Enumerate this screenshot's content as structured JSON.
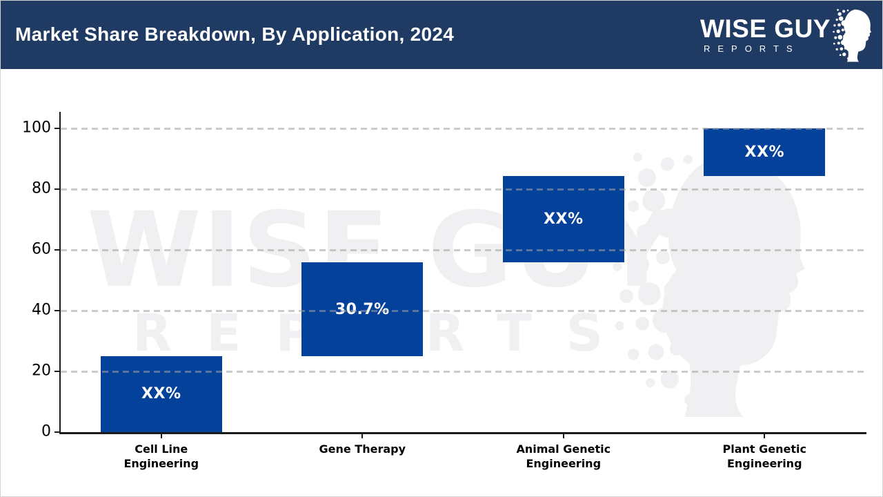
{
  "header": {
    "title": "Market Share Breakdown, By Application, 2024"
  },
  "brand": {
    "name": "WISE GUY",
    "sub": "REPORTS",
    "face_icon": "dotted-head-profile-icon"
  },
  "watermark": {
    "name": "WISE GUY",
    "sub": "REPORTS"
  },
  "chart_data": {
    "type": "bar",
    "subtype": "floating-segment-waterfall",
    "title": "Market Share Breakdown, By Application, 2024",
    "categories": [
      "Cell Line\nEngineering",
      "Gene Therapy",
      "Animal Genetic\nEngineering",
      "Plant Genetic\nEngineering"
    ],
    "series": [
      {
        "name": "Market share (%)",
        "segments": [
          {
            "category": "Cell Line Engineering",
            "start": 0,
            "end": 25.1,
            "value_label": "XX%"
          },
          {
            "category": "Gene Therapy",
            "start": 25.1,
            "end": 55.8,
            "value_label": "30.7%",
            "value": 30.7
          },
          {
            "category": "Animal Genetic Engineering",
            "start": 55.8,
            "end": 84.4,
            "value_label": "XX%"
          },
          {
            "category": "Plant Genetic Engineering",
            "start": 84.4,
            "end": 100,
            "value_label": "XX%"
          }
        ]
      }
    ],
    "ylim": [
      0,
      100
    ],
    "yticks": [
      0,
      20,
      40,
      60,
      80,
      100
    ],
    "grid": "horizontal-dashed",
    "legend": "none",
    "bar_color": "#03419a"
  },
  "colors": {
    "header_bg": "#1f3a63",
    "bar": "#03419a",
    "value_label": "#ffffff",
    "grid_dash": "#ababab",
    "axis": "#1a1a1a",
    "watermark": "#f0f0f2",
    "frame_border": "#d4d4d4"
  }
}
